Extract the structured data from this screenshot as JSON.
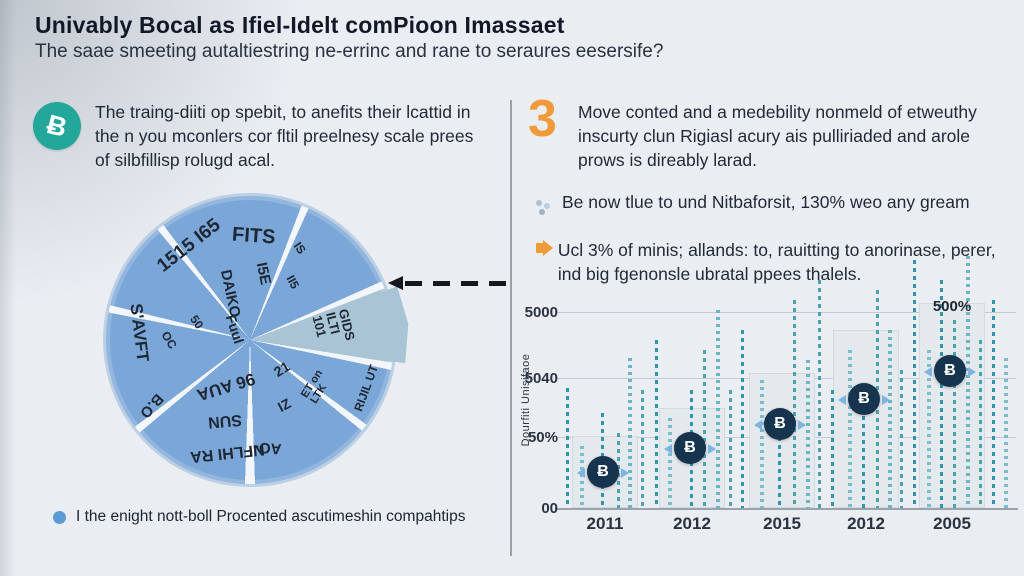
{
  "header": {
    "title": "Univably Bocal as Ifiel-Idelt comPioon Imassaet",
    "subtitle": "The saae smeeting autaltiestring ne-errinc and rane to seraures eesersife?"
  },
  "left": {
    "intro": {
      "icon": "bitcoin-icon",
      "icon_glyph": "Ƀ",
      "text": "The traing-diiti op spebit, to anefits their lcattid in the n you mconlers cor fltil preelnesy scale prees of silbfillisp rolugd acal."
    },
    "pie_labels": [
      "1515 I65",
      "FITS",
      "I5E",
      "IS",
      "II5",
      "DAIKO",
      "50",
      "Fuul",
      "S'AVFT",
      "OC",
      "96 AUA",
      "SUN",
      "NFLHI RA",
      "B.O",
      "21",
      "IZ",
      "AO-",
      "GIDS\nILTI\n101",
      "ET on\nLTK",
      "RIJIL UT"
    ],
    "legend": {
      "marker_color": "#5b9bd5",
      "text": "I the enight nott-boll Procented ascutimeshin compahtips"
    }
  },
  "right": {
    "step_number": "3",
    "step_text": "Move conted and a medebility nonmeld of etweuthy inscurty clun Rigiasl acury ais pulliriaded and arole prows is direably larad.",
    "bullets": [
      {
        "icon": "dots-icon",
        "text": "Be now tlue to und Nitbaforsit, 130% weo any gream"
      },
      {
        "icon": "orange-arrow-icon",
        "text": "Ucl 3% of minis; allands: to, rauitting to anorinase, perer, ind big fgenonsle ubratal ppees thalels."
      }
    ]
  },
  "chart_data": [
    {
      "type": "pie",
      "title": "",
      "slices": [
        {
          "label": "1515 I65",
          "percent": 17
        },
        {
          "label": "FITS",
          "percent": 13
        },
        {
          "label": "GIDS ILTI 101",
          "percent": 9,
          "highlighted": true
        },
        {
          "label": "RIJIL UT / ET on LTK",
          "percent": 8
        },
        {
          "label": "IZ / AO-",
          "percent": 14
        },
        {
          "label": "NFLHI RA / SUN",
          "percent": 14
        },
        {
          "label": "B.O / 96 AUA",
          "percent": 14
        },
        {
          "label": "S'AVFT / DAIKO",
          "percent": 11
        }
      ],
      "slice_color": "#7ba7d8",
      "highlight_color": "#a9c4d4",
      "annotation": "dashed black arrow pointing at highlighted slice",
      "legend_position": "bottom-left"
    },
    {
      "type": "bar",
      "categories": [
        "2011",
        "2012",
        "2015",
        "2012",
        "2005"
      ],
      "values": [
        35,
        49,
        66,
        87,
        100
      ],
      "yticks": [
        "5000",
        "5040",
        "50%",
        "00"
      ],
      "ylabel": "Dourfiti Unisifaoe",
      "bar_annotation": {
        "label": "500%",
        "bar_index": 4
      },
      "badge_glyph": "Ƀ",
      "bar_color": "#e4e9ed",
      "badge_color": "#17344f",
      "grid": true,
      "legend_position": "none"
    }
  ],
  "colors": {
    "accent_teal": "#23a79a",
    "accent_orange": "#f09a3a",
    "pie_blue": "#7ba7d8",
    "pie_highlight": "#a9c4d4",
    "badge_navy": "#17344f",
    "legend_dot": "#5b9bd5",
    "teal_dash": "#2f95a8"
  }
}
